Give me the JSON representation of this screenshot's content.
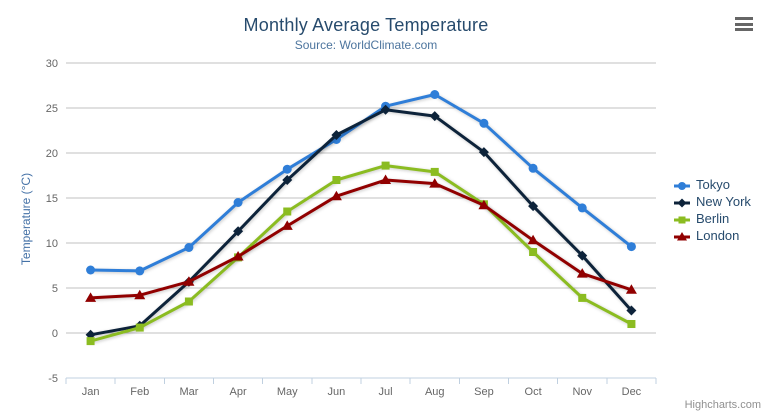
{
  "credits": "Highcharts.com",
  "colors": {
    "title": "#274b6d",
    "subtitle": "#4d759e",
    "axis_labels": "#666666",
    "y_axis_title": "#4572a7",
    "gridline": "#c0c0c0",
    "axis_line": "#c0d0e0",
    "legend_text": "#274b6d",
    "credits_text": "#909090",
    "menu_icon": "#666666"
  },
  "chart_data": {
    "type": "line",
    "title": "Monthly Average Temperature",
    "subtitle": "Source: WorldClimate.com",
    "xlabel": "",
    "ylabel": "Temperature (°C)",
    "ylim": [
      -5,
      30
    ],
    "ytick_step": 5,
    "grid": true,
    "legend_position": "right",
    "categories": [
      "Jan",
      "Feb",
      "Mar",
      "Apr",
      "May",
      "Jun",
      "Jul",
      "Aug",
      "Sep",
      "Oct",
      "Nov",
      "Dec"
    ],
    "series": [
      {
        "name": "Tokyo",
        "color": "#2f7ed8",
        "marker": "circle",
        "values": [
          7.0,
          6.9,
          9.5,
          14.5,
          18.2,
          21.5,
          25.2,
          26.5,
          23.3,
          18.3,
          13.9,
          9.6
        ]
      },
      {
        "name": "New York",
        "color": "#0d233a",
        "marker": "diamond",
        "values": [
          -0.2,
          0.8,
          5.7,
          11.3,
          17.0,
          22.0,
          24.8,
          24.1,
          20.1,
          14.1,
          8.6,
          2.5
        ]
      },
      {
        "name": "Berlin",
        "color": "#8bbc21",
        "marker": "square",
        "values": [
          -0.9,
          0.6,
          3.5,
          8.4,
          13.5,
          17.0,
          18.6,
          17.9,
          14.3,
          9.0,
          3.9,
          1.0
        ]
      },
      {
        "name": "London",
        "color": "#910000",
        "marker": "triangle",
        "values": [
          3.9,
          4.2,
          5.7,
          8.5,
          11.9,
          15.2,
          17.0,
          16.6,
          14.2,
          10.3,
          6.6,
          4.8
        ]
      }
    ]
  }
}
